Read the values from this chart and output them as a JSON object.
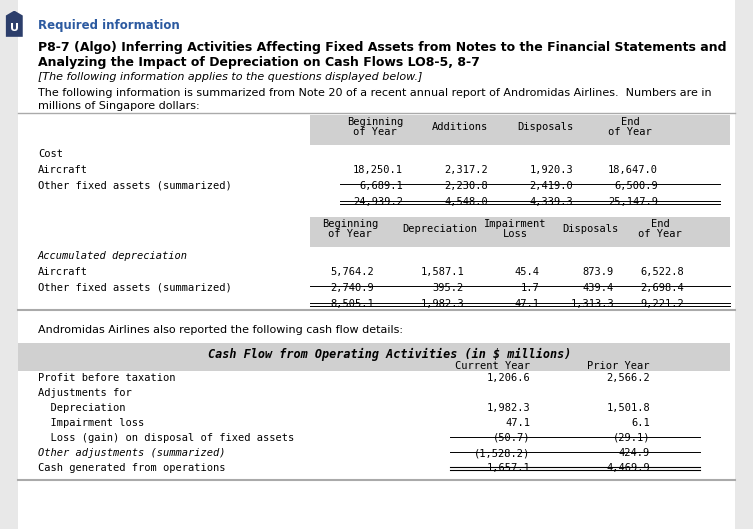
{
  "bg_color": "#e8e8e8",
  "white": "#ffffff",
  "header_bg": "#d0d0d0",
  "light_bg": "#d8d8d8",
  "required_color": "#2c5aa0",
  "title_color": "#000000",
  "text_color": "#000000",
  "icon_color": "#2c3e6b",
  "required_label": "Required information",
  "title_line1": "P8-7 (Algo) Inferring Activities Affecting Fixed Assets from Notes to the Financial Statements and",
  "title_line2": "Analyzing the Impact of Depreciation on Cash Flows LO8-5, 8-7",
  "subtitle": "[The following information applies to the questions displayed below.]",
  "intro1": "The following information is summarized from Note 20 of a recent annual report of Andromidas Airlines.  Numbers are in",
  "intro2": "millions of Singapore dollars:",
  "t1_headers": [
    "Beginning\nof Year",
    "Additions",
    "Disposals",
    "End\nof Year"
  ],
  "t1_section": "Cost",
  "t1_row1_label": "Aircraft",
  "t1_row1_vals": [
    "18,250.1",
    "2,317.2",
    "1,920.3",
    "18,647.0"
  ],
  "t1_row2_label": "Other fixed assets (summarized)",
  "t1_row2_vals": [
    "6,689.1",
    "2,230.8",
    "2,419.0",
    "6,500.9"
  ],
  "t1_total_vals": [
    "24,939.2",
    "4,548.0",
    "4,339.3",
    "25,147.9"
  ],
  "t2_headers": [
    "Beginning\nof Year",
    "Depreciation",
    "Impairment\nLoss",
    "Disposals",
    "End\nof Year"
  ],
  "t2_section": "Accumulated depreciation",
  "t2_row1_label": "Aircraft",
  "t2_row1_vals": [
    "5,764.2",
    "1,587.1",
    "45.4",
    "873.9",
    "6,522.8"
  ],
  "t2_row2_label": "Other fixed assets (summarized)",
  "t2_row2_vals": [
    "2,740.9",
    "395.2",
    "1.7",
    "439.4",
    "2,698.4"
  ],
  "t2_total_vals": [
    "8,505.1",
    "1,982.3",
    "47.1",
    "1,313.3",
    "9,221.2"
  ],
  "cf_intro": "Andromidas Airlines also reported the following cash flow details:",
  "cf_title": "Cash Flow from Operating Activities (in $ millions)",
  "cf_col1": "Current Year",
  "cf_col2": "Prior Year",
  "cf_rows": [
    [
      "Profit before taxation",
      "1,206.6",
      "2,566.2"
    ],
    [
      "Adjustments for",
      "",
      ""
    ],
    [
      "  Depreciation",
      "1,982.3",
      "1,501.8"
    ],
    [
      "  Impairment loss",
      "47.1",
      "6.1"
    ],
    [
      "  Loss (gain) on disposal of fixed assets",
      "(50.7)",
      "(29.1)"
    ],
    [
      "Other adjustments (summarized)",
      "(1,528.2)",
      "424.9"
    ],
    [
      "Cash generated from operations",
      "1,657.1",
      "4,469.9"
    ]
  ]
}
